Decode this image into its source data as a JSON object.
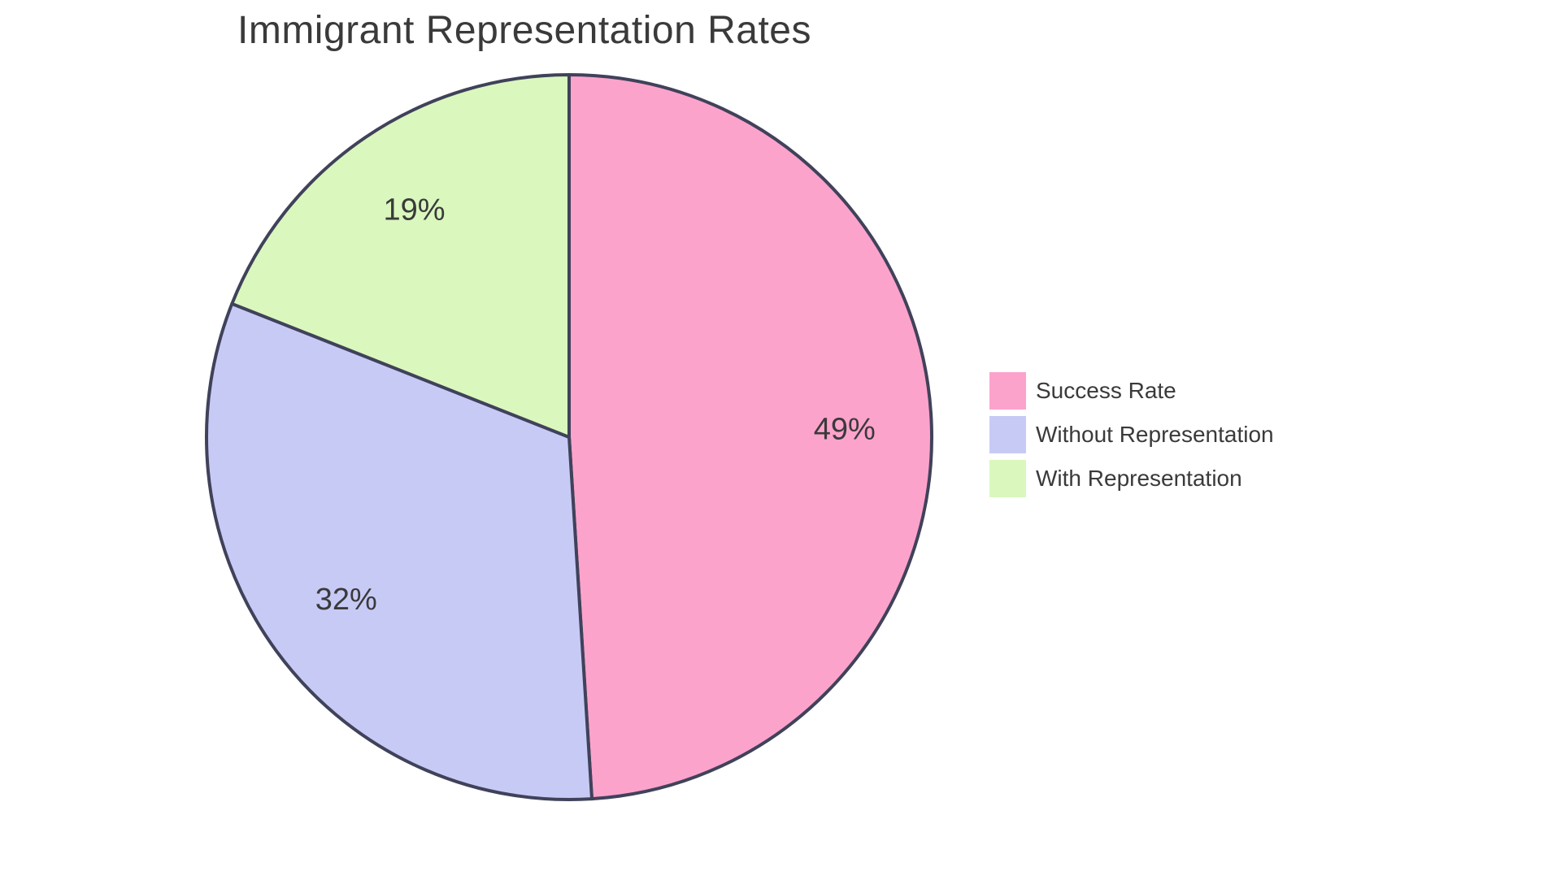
{
  "page": {
    "background_color": "#FFFFFF"
  },
  "chart_data": {
    "type": "pie",
    "title": "Immigrant Representation Rates",
    "slices": [
      {
        "label": "Success Rate",
        "value": 49,
        "display": "49%",
        "color": "#FCA3CC"
      },
      {
        "label": "Without Representation",
        "value": 32,
        "display": "32%",
        "color": "#C8CAF6"
      },
      {
        "label": "With Representation",
        "value": 19,
        "display": "19%",
        "color": "#DAF7BE"
      }
    ],
    "start_angle_deg": 0,
    "direction": "clockwise",
    "edge_color": "#40425A",
    "label_color": "#3A3A3A",
    "title_color": "#3A3A3A",
    "legend_position": "right",
    "grid": "off"
  }
}
